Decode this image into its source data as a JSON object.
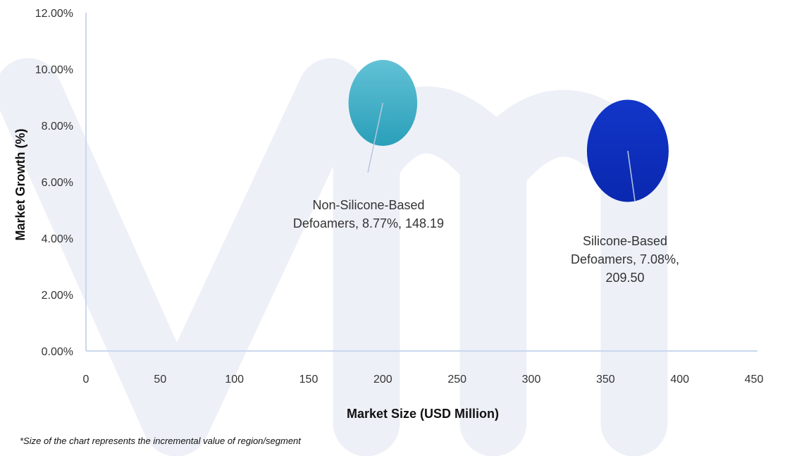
{
  "chart_data": {
    "type": "scatter",
    "xlabel": "Market Size (USD Million)",
    "ylabel": "Market Growth (%)",
    "xlim": [
      0,
      450
    ],
    "ylim": [
      0,
      12
    ],
    "xticks": [
      "0",
      "50",
      "100",
      "150",
      "200",
      "250",
      "300",
      "350",
      "400",
      "450"
    ],
    "yticks": [
      "0.00%",
      "2.00%",
      "4.00%",
      "6.00%",
      "8.00%",
      "10.00%",
      "12.00%"
    ],
    "points": [
      {
        "label_lines": [
          "Non-Silicone-Based",
          "Defoamers, 8.77%, 148.19"
        ],
        "x": 200,
        "y": 8.8,
        "growth": "8.77%",
        "size": 148.19,
        "color": "#3fb0c9"
      },
      {
        "label_lines": [
          "Silicone-Based",
          "Defoamers, 7.08%,",
          "209.50"
        ],
        "x": 365,
        "y": 7.1,
        "growth": "7.08%",
        "size": 209.5,
        "color": "#0d2fbd"
      }
    ],
    "footnote": "*Size of the chart represents the incremental value of region/segment",
    "grid": false,
    "legend": "none",
    "colors": {
      "axis": "#c9d9ee",
      "watermark": "#eef0f8"
    }
  }
}
